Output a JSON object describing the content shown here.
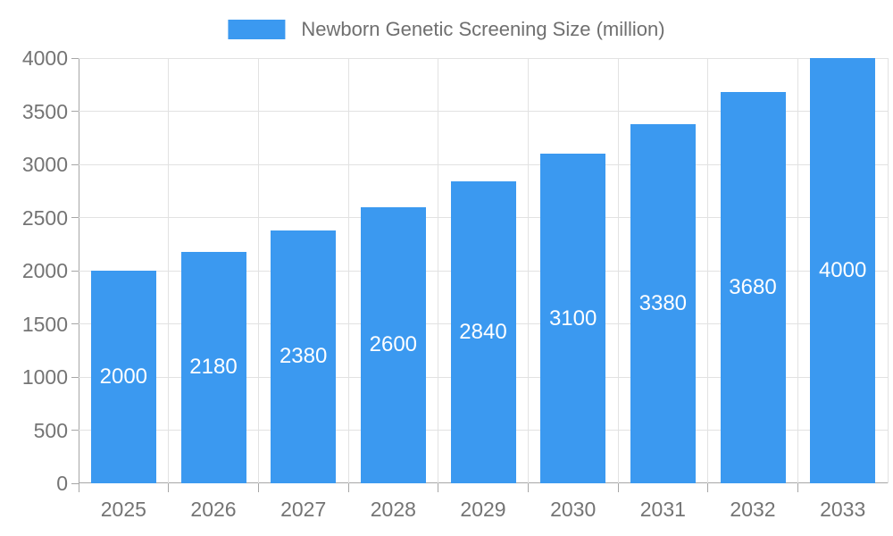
{
  "legend": {
    "label": "Newborn Genetic Screening Size (million)"
  },
  "colors": {
    "bar": "#3B99F0",
    "grid": "#E2E2E2",
    "axis": "#A6A6A6",
    "axis_label": "#747474",
    "legend_label": "#6F6F6F",
    "bar_label": "#FFFFFF",
    "background": "#FFFFFF"
  },
  "chart_data": {
    "type": "bar",
    "title": "",
    "xlabel": "",
    "ylabel": "",
    "categories": [
      "2025",
      "2026",
      "2027",
      "2028",
      "2029",
      "2030",
      "2031",
      "2032",
      "2033"
    ],
    "series": [
      {
        "name": "Newborn Genetic Screening Size (million)",
        "values": [
          2000,
          2180,
          2380,
          2600,
          2840,
          3100,
          3380,
          3680,
          4000
        ]
      }
    ],
    "ylim": [
      0,
      4000
    ],
    "ytick_step": 500,
    "yticks": [
      0,
      500,
      1000,
      1500,
      2000,
      2500,
      3000,
      3500,
      4000
    ],
    "grid": true,
    "legend_position": "top-center",
    "bar_label_position": "inside-center"
  }
}
